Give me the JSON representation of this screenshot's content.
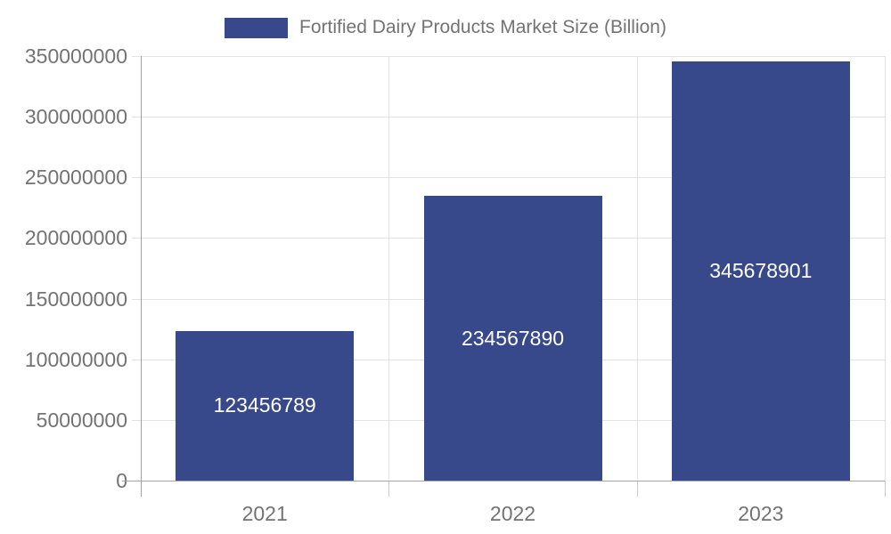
{
  "legend": {
    "label": "Fortified Dairy Products Market Size (Billion)",
    "swatch_color": "#38498B"
  },
  "chart_data": {
    "type": "bar",
    "title": "Fortified Dairy Products Market Size (Billion)",
    "categories": [
      "2021",
      "2022",
      "2023"
    ],
    "values": [
      123456789,
      234567890,
      345678901
    ],
    "bar_labels": [
      "123456789",
      "234567890",
      "345678901"
    ],
    "xlabel": "",
    "ylabel": "",
    "ylim": [
      0,
      350000000
    ],
    "ytick_interval": 50000000,
    "ytick_labels": [
      "0",
      "50000000",
      "100000000",
      "150000000",
      "200000000",
      "250000000",
      "300000000",
      "350000000"
    ],
    "grid": "horizontal-and-category-boundaries",
    "legend_position": "top-center",
    "bar_color": "#38498B",
    "bar_label_color": "#ffffff"
  },
  "colors": {
    "background": "#ffffff",
    "bar": "#38498B",
    "axis_line": "#a3a3a3",
    "grid_line": "#e3e3e3",
    "y_tick": "#e3e3e3",
    "zero_tick": "#b3b3b3",
    "boundary_tick": "#c9c9c9",
    "axis_text": "#737373",
    "legend_text": "#737373"
  }
}
